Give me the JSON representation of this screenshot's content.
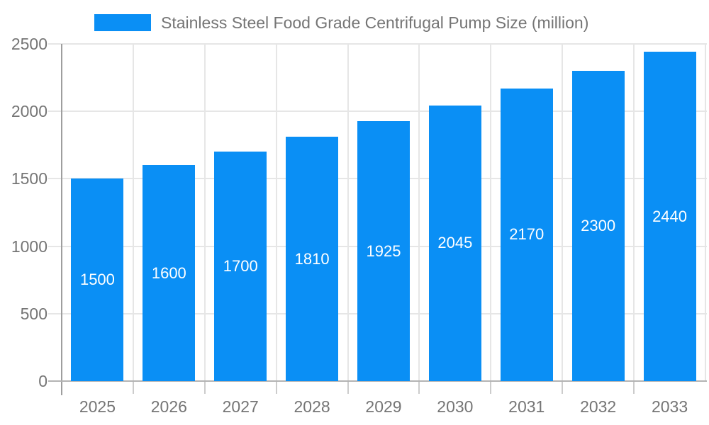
{
  "chart_data": {
    "type": "bar",
    "title": "Stainless Steel Food Grade Centrifugal Pump Size (million)",
    "legend": {
      "label": "Stainless Steel Food Grade Centrifugal Pump Size (million)",
      "position": "top"
    },
    "categories": [
      "2025",
      "2026",
      "2027",
      "2028",
      "2029",
      "2030",
      "2031",
      "2032",
      "2033"
    ],
    "values": [
      1500,
      1600,
      1700,
      1810,
      1925,
      2045,
      2170,
      2300,
      2440
    ],
    "value_labels": [
      "1500",
      "1600",
      "1700",
      "1810",
      "1925",
      "2045",
      "2170",
      "2300",
      "2440"
    ],
    "xlabel": "",
    "ylabel": "",
    "ylim": [
      0,
      2500
    ],
    "yticks": [
      0,
      500,
      1000,
      1500,
      2000,
      2500
    ],
    "ytick_labels": [
      "0",
      "500",
      "1000",
      "1500",
      "2000",
      "2500"
    ],
    "grid": true,
    "legend_position": "top"
  },
  "colors": {
    "bar": "#0a8ff5",
    "bar_value_text": "#ffffff",
    "axis_text": "#757575",
    "legend_text": "#757575",
    "gridline": "#e6e6e6",
    "baseline": "#b3b3b3",
    "y_axis_line": "#9e9e9e",
    "x_tick": "#cccccc",
    "background": "#ffffff"
  }
}
